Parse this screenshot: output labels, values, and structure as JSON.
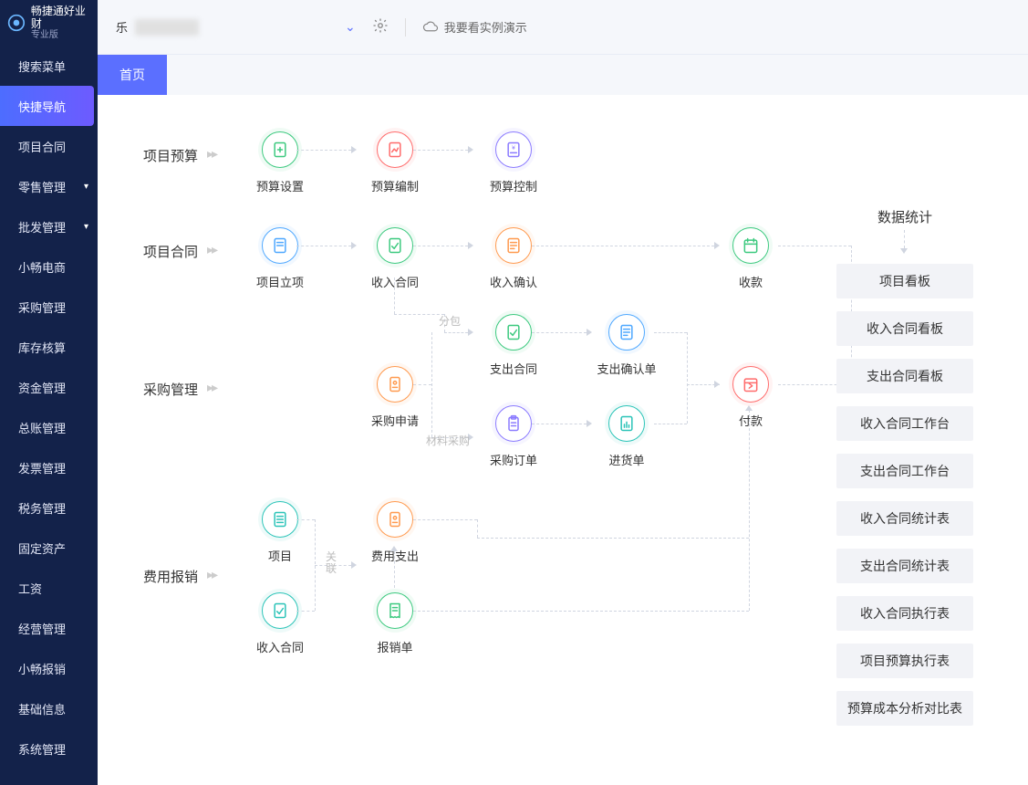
{
  "brand": {
    "name": "畅捷通好业财",
    "edition": "专业版"
  },
  "topbar": {
    "demo_label": "我要看实例演示"
  },
  "tab": {
    "home": "首页"
  },
  "sidebar": {
    "items": [
      {
        "label": "搜索菜单",
        "active": false
      },
      {
        "label": "快捷导航",
        "active": true
      },
      {
        "label": "项目合同",
        "active": false
      },
      {
        "label": "零售管理",
        "active": false,
        "arrow": true
      },
      {
        "label": "批发管理",
        "active": false,
        "arrow": true
      },
      {
        "label": "小畅电商",
        "active": false
      },
      {
        "label": "采购管理",
        "active": false
      },
      {
        "label": "库存核算",
        "active": false
      },
      {
        "label": "资金管理",
        "active": false
      },
      {
        "label": "总账管理",
        "active": false
      },
      {
        "label": "发票管理",
        "active": false
      },
      {
        "label": "税务管理",
        "active": false
      },
      {
        "label": "固定资产",
        "active": false
      },
      {
        "label": "工资",
        "active": false
      },
      {
        "label": "经营管理",
        "active": false
      },
      {
        "label": "小畅报销",
        "active": false
      },
      {
        "label": "基础信息",
        "active": false
      },
      {
        "label": "系统管理",
        "active": false
      }
    ]
  },
  "sections": {
    "budget": "项目预算",
    "contract": "项目合同",
    "purchase": "采购管理",
    "expense": "费用报销"
  },
  "nodes": {
    "budget_setting": {
      "label": "预算设置",
      "color": "#3cc97f",
      "glyph": "doc-plus"
    },
    "budget_edit": {
      "label": "预算编制",
      "color": "#ff6b6b",
      "glyph": "chart"
    },
    "budget_control": {
      "label": "预算控制",
      "color": "#8b7bff",
      "glyph": "money-bar"
    },
    "project_init": {
      "label": "项目立项",
      "color": "#4fa8ff",
      "glyph": "doc"
    },
    "income_contract": {
      "label": "收入合同",
      "color": "#3cc97f",
      "glyph": "doc-check"
    },
    "income_confirm": {
      "label": "收入确认",
      "color": "#ff9a4f",
      "glyph": "doc-lines"
    },
    "receipt": {
      "label": "收款",
      "color": "#3cc97f",
      "glyph": "calendar"
    },
    "purchase_req": {
      "label": "采购申请",
      "color": "#ff9a4f",
      "glyph": "badge"
    },
    "expense_contract": {
      "label": "支出合同",
      "color": "#3cc97f",
      "glyph": "doc-check"
    },
    "expense_confirm": {
      "label": "支出确认单",
      "color": "#4fa8ff",
      "glyph": "doc-lines"
    },
    "purchase_order": {
      "label": "采购订单",
      "color": "#8b7bff",
      "glyph": "clipboard"
    },
    "goods_receipt": {
      "label": "进货单",
      "color": "#2bc4b8",
      "glyph": "doc-bar"
    },
    "payment": {
      "label": "付款",
      "color": "#ff6b6b",
      "glyph": "calendar-out"
    },
    "project": {
      "label": "项目",
      "color": "#2bc4b8",
      "glyph": "list"
    },
    "expense_out": {
      "label": "费用支出",
      "color": "#ff9a4f",
      "glyph": "badge"
    },
    "income_contract2": {
      "label": "收入合同",
      "color": "#2bc4b8",
      "glyph": "doc-check"
    },
    "reimburse": {
      "label": "报销单",
      "color": "#3cc97f",
      "glyph": "receipt"
    }
  },
  "edge_labels": {
    "subcontract": "分包",
    "material": "材料采购",
    "relate": "关\n联"
  },
  "stats": {
    "title": "数据统计",
    "buttons": [
      "项目看板",
      "收入合同看板",
      "支出合同看板",
      "收入合同工作台",
      "支出合同工作台",
      "收入合同统计表",
      "支出合同统计表",
      "收入合同执行表",
      "项目预算执行表",
      "预算成本分析对比表"
    ]
  },
  "colors": {
    "sidebar_bg": "#13224a",
    "accent": "#5b6fff",
    "canvas_bg": "#ffffff",
    "connector": "#d0d5e0"
  }
}
